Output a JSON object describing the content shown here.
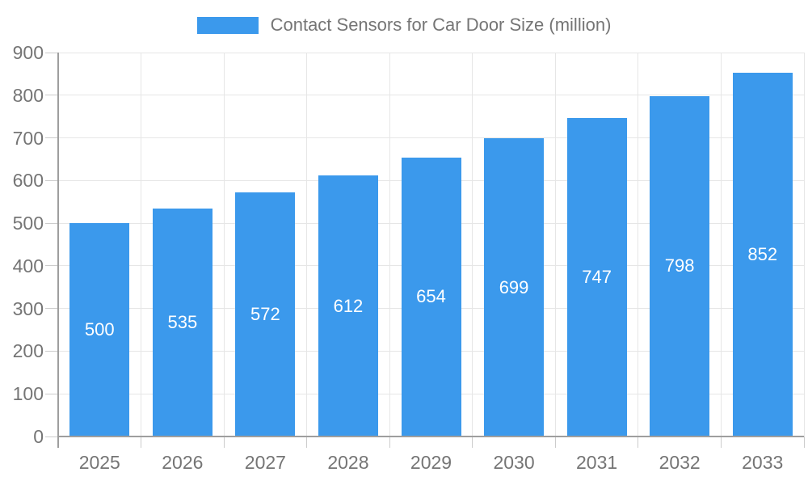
{
  "chart_data": {
    "type": "bar",
    "title": "Contact Sensors for Car Door Size (million)",
    "categories": [
      "2025",
      "2026",
      "2027",
      "2028",
      "2029",
      "2030",
      "2031",
      "2032",
      "2033"
    ],
    "values": [
      500,
      535,
      572,
      612,
      654,
      699,
      747,
      798,
      852
    ],
    "series_name": "Contact Sensors for Car Door Size (million)",
    "xlabel": "",
    "ylabel": "",
    "ylim": [
      0,
      900
    ],
    "y_ticks": [
      0,
      100,
      200,
      300,
      400,
      500,
      600,
      700,
      800,
      900
    ],
    "grid": true,
    "legend_position": "top",
    "value_labels_shown": true,
    "colors": {
      "bar": "#3B99EC",
      "text": "#757575",
      "axis": "#9E9E9E",
      "gridline": "#E6E6E6",
      "tick": "#CCCCCC",
      "value_label": "#FFFFFF",
      "background": "#FFFFFF"
    }
  }
}
